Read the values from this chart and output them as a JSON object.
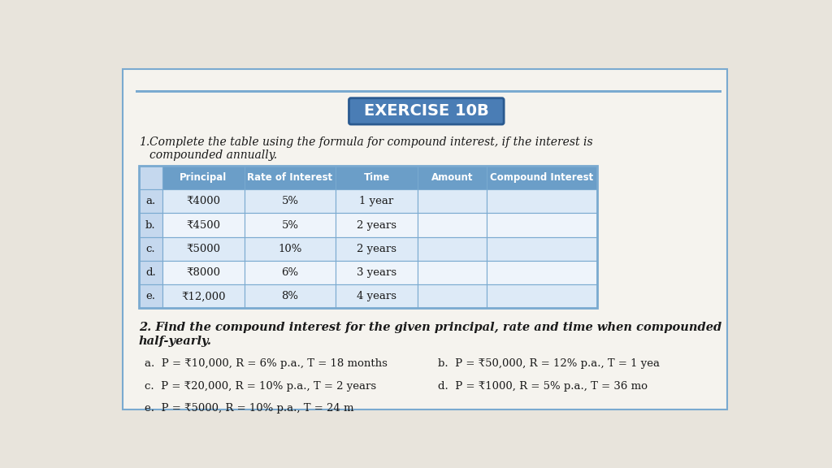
{
  "title": "EXERCISE 10B",
  "question1_num": "1.",
  "question1_text": "Complete the table using the formula for compound interest, if the interest is\ncompounded annually.",
  "question2_intro": "Find the compound interest for the given principal, rate and time when compounded\nhalf-yearly.",
  "table_headers": [
    "",
    "Principal",
    "Rate of Interest",
    "Time",
    "Amount",
    "Compound Interest"
  ],
  "table_rows": [
    [
      "a.",
      "₹4000",
      "5%",
      "1 year",
      "",
      ""
    ],
    [
      "b.",
      "₹4500",
      "5%",
      "2 years",
      "",
      ""
    ],
    [
      "c.",
      "₹5000",
      "10%",
      "2 years",
      "",
      ""
    ],
    [
      "d.",
      "₹8000",
      "6%",
      "3 years",
      "",
      ""
    ],
    [
      "e.",
      "₹12,000",
      "8%",
      "4 years",
      "",
      ""
    ]
  ],
  "sub_q_left": [
    "a.  P = ₹10,000, R = 6% p.a., T = 18 months",
    "c.  P = ₹20,000, R = 10% p.a., T = 2 years",
    "e.  P = ₹5000, R = 10% p.a., T = 24 m"
  ],
  "sub_q_right": [
    "b.  P = ₹50,000, R = 12% p.a., T = 1 yea",
    "d.  P = ₹1000, R = 5% p.a., T = 36 mo"
  ],
  "page_bg": "#e8e4dc",
  "page_white": "#f5f3ee",
  "header_bg": "#6b9ec8",
  "header_text_color": "#ffffff",
  "row_bg_even": "#ddeaf7",
  "row_bg_odd": "#eef4fb",
  "label_col_bg": "#c5d8ee",
  "title_bg": "#4a7db5",
  "title_text_color": "#ffffff",
  "border_color": "#7aaad0",
  "text_color": "#1a1a1a",
  "table_outer_bg": "#c8d8e8"
}
